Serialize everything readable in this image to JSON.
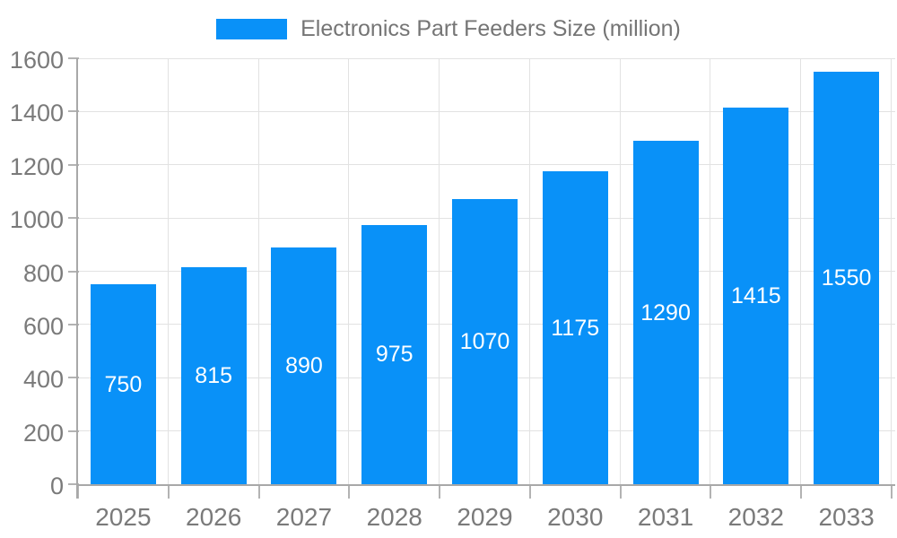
{
  "chart_data": {
    "type": "bar",
    "title": "Electronics Part Feeders Size (million)",
    "categories": [
      "2025",
      "2026",
      "2027",
      "2028",
      "2029",
      "2030",
      "2031",
      "2032",
      "2033"
    ],
    "values": [
      750,
      815,
      890,
      975,
      1070,
      1175,
      1290,
      1415,
      1550
    ],
    "xlabel": "",
    "ylabel": "",
    "ylim": [
      0,
      1600
    ],
    "ytick_step": 200,
    "yticks": [
      "0",
      "200",
      "400",
      "600",
      "800",
      "1000",
      "1200",
      "1400",
      "1600"
    ],
    "grid": true,
    "legend_position": "top-center",
    "bar_labels_inside": true,
    "colors": {
      "bar": "#0991f8",
      "bar_label": "#ffffff",
      "axis_text": "#7a7a7a",
      "legend_text": "#757575",
      "axis_line": "#a8a8a8",
      "tick": "#b3b3b3",
      "gridline": "#e2e2e2",
      "background": "#ffffff"
    }
  }
}
